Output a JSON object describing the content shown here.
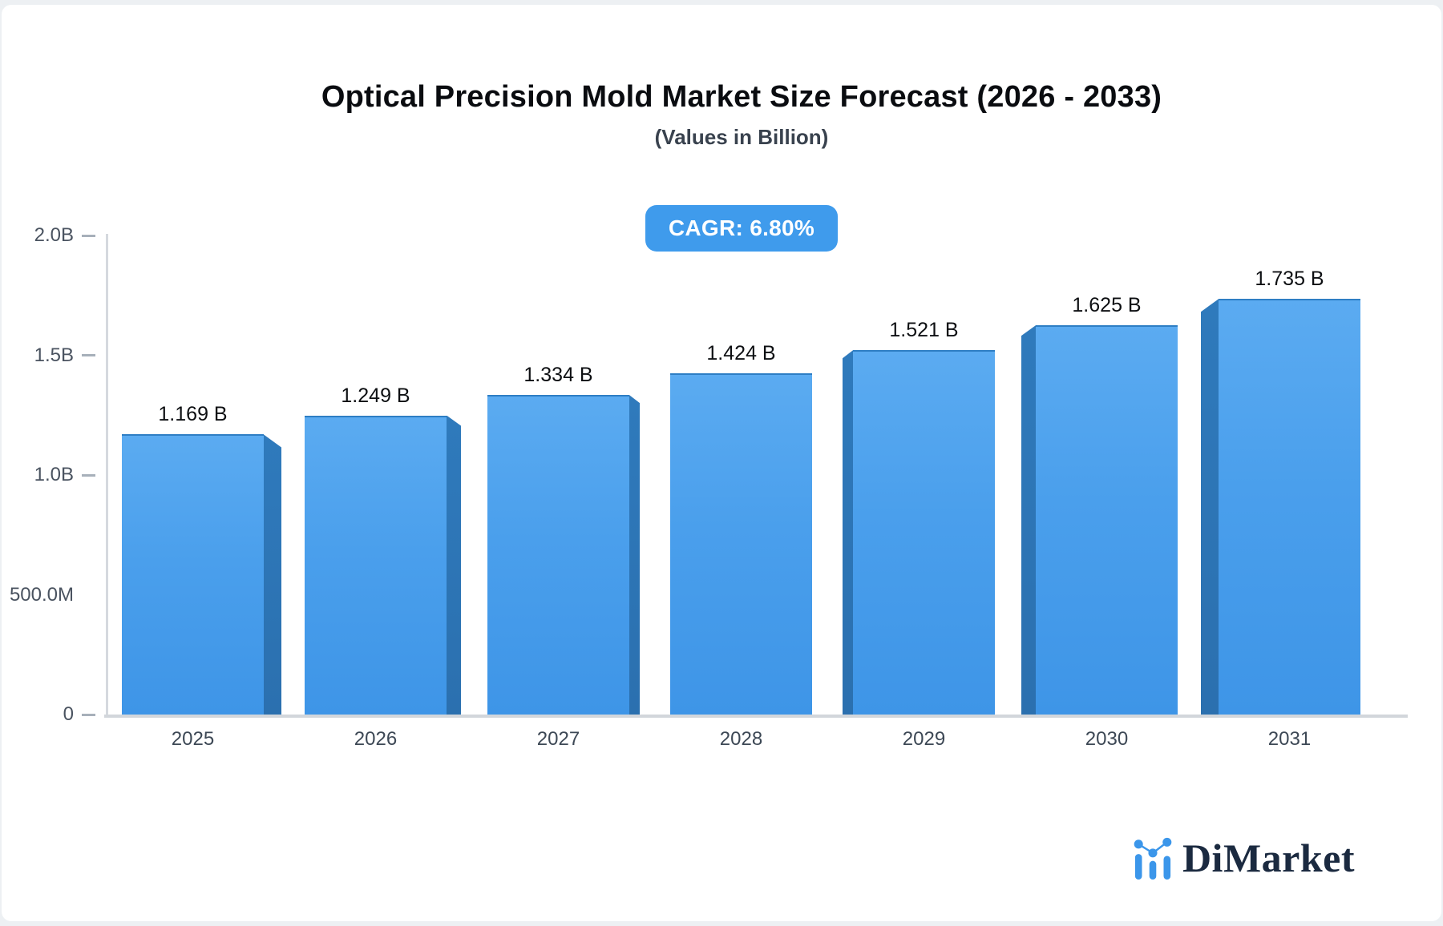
{
  "header": {
    "title": "Optical Precision Mold Market Size Forecast (2026 - 2033)",
    "subtitle": "(Values in Billion)",
    "cagr_badge": "CAGR: 6.80%"
  },
  "chart_data": {
    "type": "bar",
    "title": "Optical Precision Mold Market Size Forecast (2026 - 2033)",
    "subtitle": "(Values in Billion)",
    "categories": [
      "2025",
      "2026",
      "2027",
      "2028",
      "2029",
      "2030",
      "2031"
    ],
    "values": [
      1.169,
      1.249,
      1.334,
      1.424,
      1.521,
      1.625,
      1.735
    ],
    "value_labels": [
      "1.169 B",
      "1.249 B",
      "1.334 B",
      "1.424 B",
      "1.521 B",
      "1.625 B",
      "1.735 B"
    ],
    "unit": "Billion",
    "ylim": [
      0,
      2.0
    ],
    "y_ticks": [
      {
        "label": "2.0B",
        "value": 2.0,
        "dash": true
      },
      {
        "label": "1.5B",
        "value": 1.5,
        "dash": true
      },
      {
        "label": "1.0B",
        "value": 1.0,
        "dash": true
      },
      {
        "label": "500.0M",
        "value": 0.5,
        "dash": false
      },
      {
        "label": "0",
        "value": 0.0,
        "dash": true
      }
    ],
    "annotation": "CAGR: 6.80%",
    "legend": [],
    "grid": false,
    "colors": {
      "bar_face_top": "#5babf1",
      "bar_face_bottom": "#3e95e7",
      "bar_side": "#2d74b6",
      "accent": "#3f9bec",
      "axis": "#d2d6db",
      "label_text": "#0d0f12"
    }
  },
  "branding": {
    "wordmark": "DiMarket",
    "icon": "mini-bar-chart-icon",
    "wordmark_color": "#1b2a40",
    "icon_color": "#3b96ea"
  }
}
